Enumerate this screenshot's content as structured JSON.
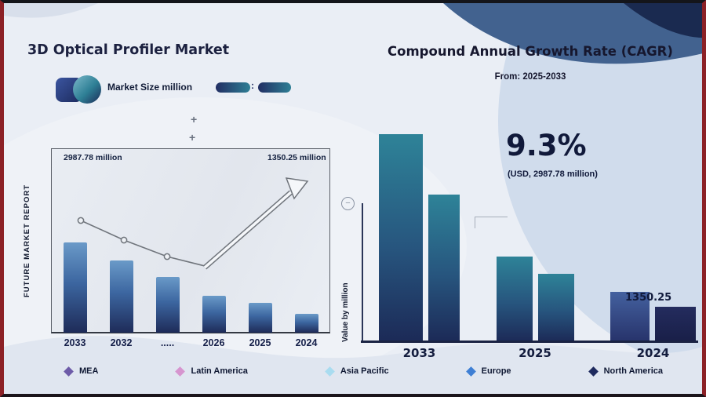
{
  "header": {
    "left_title": "3D Optical Profiler Market",
    "right_title": "Compound Annual Growth Rate (CAGR)",
    "right_subtitle": "From: 2025-2033"
  },
  "left_panel": {
    "series_label": "Market Size million",
    "watermark": "FUTURE MARKET REPORT",
    "annotation_left": "2987.78 million",
    "annotation_right": "1350.25 million"
  },
  "right_panel": {
    "ylabel": "Value by million",
    "cagr_value": "9.3%",
    "cagr_note": "(USD, 2987.78 million)",
    "bar_label": "1350.25"
  },
  "legend": {
    "items": [
      {
        "label": "MEA",
        "color": "#6d5ba8"
      },
      {
        "label": "Latin America",
        "color": "#d695cf"
      },
      {
        "label": "Asia Pacific",
        "color": "#a9dcf0"
      },
      {
        "label": "Europe",
        "color": "#3f7fd4"
      },
      {
        "label": "North America",
        "color": "#1e2a5e"
      }
    ]
  },
  "decor": {
    "plus": "+",
    "minus": "−",
    "colon": ":"
  },
  "colors": {
    "page_bg": "#eaeef5",
    "navy": "#1c2a57",
    "teal": "#2e8398",
    "accent_red": "#8c2126",
    "text_dark": "#10193a"
  },
  "chart_data": [
    {
      "type": "bar",
      "title": "3D Optical Profiler Market",
      "series_name": "Market Size million",
      "unit": "USD million",
      "categories": [
        "2033",
        "2032",
        ".....",
        "2026",
        "2025",
        "2024"
      ],
      "values": [
        2987.78,
        2600,
        2200,
        1750,
        1520,
        1350.25
      ],
      "relative_heights": [
        1.0,
        0.8,
        0.62,
        0.41,
        0.33,
        0.21
      ],
      "labeled_values": {
        "2033": "2987.78 million",
        "2024": "1350.25 million"
      },
      "xlabel": "",
      "ylabel": "FUTURE MARKET REPORT (watermark)",
      "legend_position": "top-left",
      "grid": false,
      "trend": {
        "type": "line-with-markers-then-arrow-up",
        "marker_count": 3,
        "note": "line descends over 2033-2026 then outlined arrow rises to top right"
      }
    },
    {
      "type": "bar",
      "title": "Compound Annual Growth Rate (CAGR)",
      "subtitle": "From: 2025-2033",
      "cagr": "9.3%",
      "cagr_basis": "(USD, 2987.78 million)",
      "ylabel": "Value by million",
      "categories": [
        "2033",
        "2025",
        "2024"
      ],
      "groups": [
        {
          "category": "2033",
          "bars": [
            {
              "rel": 1.0,
              "value": 2987.78
            },
            {
              "rel": 0.71
            }
          ]
        },
        {
          "category": "2025",
          "bars": [
            {
              "rel": 0.41
            },
            {
              "rel": 0.325
            }
          ]
        },
        {
          "category": "2024",
          "bars": [
            {
              "rel": 0.24,
              "value": 1350.25
            },
            {
              "rel": 0.165
            }
          ]
        }
      ],
      "labeled_values": {
        "2024": 1350.25
      },
      "grid": false,
      "legend_position": "bottom",
      "legend_entries": [
        "MEA",
        "Latin America",
        "Asia Pacific",
        "Europe",
        "North America"
      ]
    }
  ]
}
